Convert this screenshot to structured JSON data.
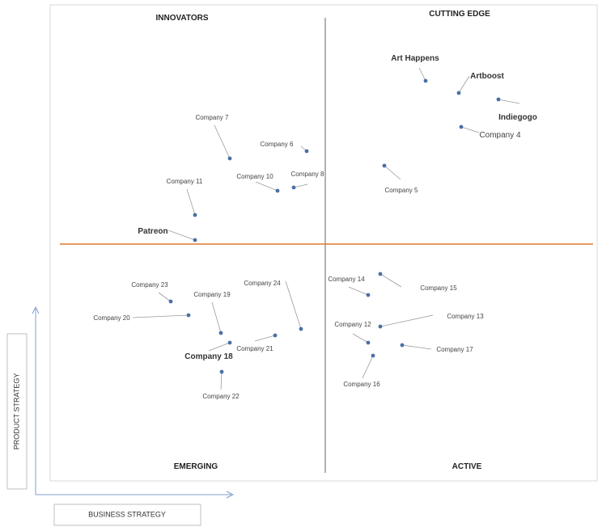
{
  "chart_data": {
    "type": "scatter",
    "title": "",
    "xlabel": "BUSINESS STRATEGY",
    "ylabel": "PRODUCT STRATEGY",
    "quadrants": {
      "top_left": "INNOVATORS",
      "top_right": "CUTTING EDGE",
      "bottom_left": "EMERGING",
      "bottom_right": "ACTIVE"
    },
    "colors": {
      "point": "#4a6fa5",
      "horizontal_divider": "#e0782d",
      "vertical_divider": "#7f7f7f",
      "axis_arrow": "#7f9fd0",
      "leader": "#9a9a9a"
    },
    "points": [
      {
        "name": "Art Happens",
        "style": "big"
      },
      {
        "name": "Artboost",
        "style": "big"
      },
      {
        "name": "Indiegogo",
        "style": "big"
      },
      {
        "name": "Company 4",
        "style": "mid"
      },
      {
        "name": "Company 5",
        "style": "small"
      },
      {
        "name": "Company 6",
        "style": "small"
      },
      {
        "name": "Company 7",
        "style": "small"
      },
      {
        "name": "Company 8",
        "style": "small"
      },
      {
        "name": "Company 10",
        "style": "small"
      },
      {
        "name": "Company 11",
        "style": "small"
      },
      {
        "name": "Patreon",
        "style": "big"
      },
      {
        "name": "Company 14",
        "style": "small"
      },
      {
        "name": "Company 15",
        "style": "small"
      },
      {
        "name": "Company 13",
        "style": "small"
      },
      {
        "name": "Company 12",
        "style": "small"
      },
      {
        "name": "Company 17",
        "style": "small"
      },
      {
        "name": "Company 16",
        "style": "small"
      },
      {
        "name": "Company 23",
        "style": "small"
      },
      {
        "name": "Company 24",
        "style": "small"
      },
      {
        "name": "Company 19",
        "style": "small"
      },
      {
        "name": "Company 20",
        "style": "small"
      },
      {
        "name": "Company 21",
        "style": "small"
      },
      {
        "name": "Company 18",
        "style": "big"
      },
      {
        "name": "Company 22",
        "style": "small"
      }
    ]
  }
}
